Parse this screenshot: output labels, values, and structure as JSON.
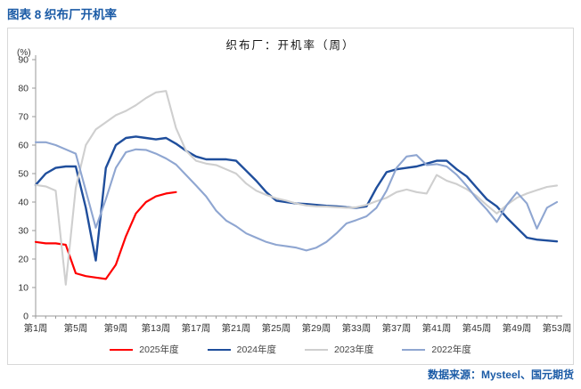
{
  "header": {
    "title": "图表 8 织布厂开机率"
  },
  "footer": {
    "source": "数据来源：Mysteel、国元期货"
  },
  "colors": {
    "title_blue": "#1B5BA6",
    "axis": "#9A9A9A",
    "tick_text": "#333333",
    "box_border": "#D8D8D8",
    "red_2025": "#FF0000",
    "navy_2024": "#1F4E9C",
    "gray_2023": "#CFCFCF",
    "steel_2022": "#8FA6D1"
  },
  "chart_data": {
    "type": "line",
    "title": "织布厂：开机率（周）",
    "unit_label": "(%)",
    "xlabel": "",
    "ylabel": "开机率(%)",
    "ylim": [
      0,
      90
    ],
    "y_ticks": [
      0,
      10,
      20,
      30,
      40,
      50,
      60,
      70,
      80,
      90
    ],
    "x_range_weeks": [
      1,
      53
    ],
    "x_tick_labels": [
      "第1周",
      "第5周",
      "第9周",
      "第13周",
      "第17周",
      "第21周",
      "第25周",
      "第29周",
      "第33周",
      "第37周",
      "第41周",
      "第45周",
      "第49周",
      "第53周"
    ],
    "grid": false,
    "legend_position": "bottom",
    "series": [
      {
        "name": "2025年度",
        "color": "#FF0000",
        "width": 2.2,
        "week_start": 1,
        "values": [
          26,
          25.5,
          25.5,
          25,
          15,
          14,
          13.5,
          13,
          18,
          28,
          36,
          40,
          42,
          43,
          43.5
        ]
      },
      {
        "name": "2024年度",
        "color": "#1F4E9C",
        "width": 2.4,
        "week_start": 1,
        "values": [
          46,
          50,
          52,
          52.5,
          52.5,
          38,
          19.5,
          52,
          60,
          62.5,
          63,
          62.5,
          62,
          62.5,
          60.5,
          58,
          56,
          55,
          55,
          55,
          54.5,
          51,
          47.5,
          43.5,
          40.5,
          40,
          39.5,
          39.3,
          39,
          38.7,
          38.5,
          38.2,
          38,
          38.5,
          45,
          50.5,
          51.5,
          52,
          52.5,
          53.5,
          54.5,
          54.5,
          51.5,
          49,
          45,
          41,
          38.5,
          34.5,
          31,
          27.5,
          26.8,
          26.5,
          26.2
        ]
      },
      {
        "name": "2023年度",
        "color": "#CFCFCF",
        "width": 2.1,
        "week_start": 1,
        "values": [
          46,
          45.5,
          44,
          11,
          45,
          60,
          65.5,
          68,
          70.5,
          72,
          74,
          76.5,
          78.5,
          79,
          66,
          58,
          54.5,
          53.5,
          53,
          51.5,
          50,
          46.5,
          44,
          42.5,
          41.3,
          40.5,
          39.5,
          38.8,
          38.5,
          38.4,
          38.2,
          38,
          38.2,
          39,
          40.3,
          41.5,
          43.5,
          44.4,
          43.5,
          43,
          49.5,
          47.5,
          46.3,
          44.5,
          42.1,
          38.9,
          36,
          39,
          41.5,
          43,
          44.2,
          45.3,
          45.8
        ]
      },
      {
        "name": "2022年度",
        "color": "#8FA6D1",
        "width": 2.1,
        "week_start": 1,
        "values": [
          61,
          61,
          60,
          58.5,
          57,
          44,
          31,
          41,
          52,
          57.5,
          58.5,
          58.3,
          57,
          55.3,
          53.2,
          49.5,
          45.8,
          42,
          37,
          33.5,
          31.5,
          29,
          27.5,
          26,
          25,
          24.5,
          24,
          23,
          24,
          26,
          29,
          32.5,
          33.7,
          35,
          38,
          44,
          52,
          56,
          56.5,
          53,
          53.3,
          52.5,
          49.6,
          45.7,
          41.2,
          37.4,
          33,
          39,
          43.4,
          39.5,
          30.7,
          38,
          40
        ]
      }
    ]
  }
}
